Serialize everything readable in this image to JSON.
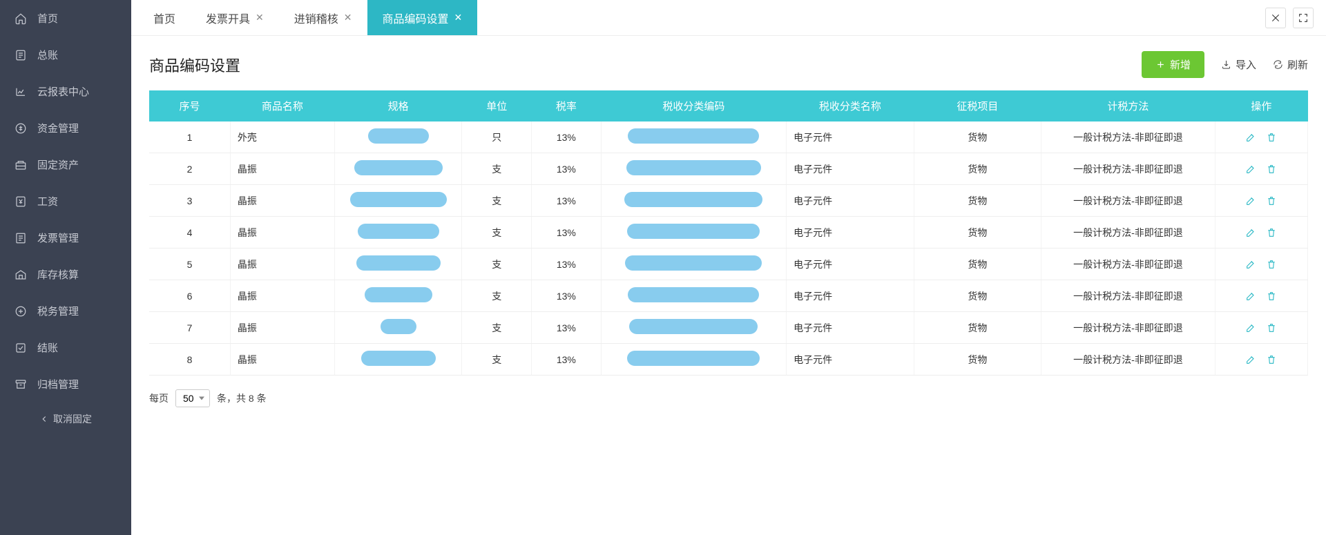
{
  "sidebar": {
    "items": [
      {
        "icon": "home",
        "label": "首页"
      },
      {
        "icon": "ledger",
        "label": "总账"
      },
      {
        "icon": "report",
        "label": "云报表中心"
      },
      {
        "icon": "fund",
        "label": "资金管理"
      },
      {
        "icon": "asset",
        "label": "固定资产"
      },
      {
        "icon": "salary",
        "label": "工资"
      },
      {
        "icon": "invoice",
        "label": "发票管理"
      },
      {
        "icon": "stock",
        "label": "库存核算"
      },
      {
        "icon": "tax",
        "label": "税务管理"
      },
      {
        "icon": "close-acct",
        "label": "结账"
      },
      {
        "icon": "archive",
        "label": "归档管理"
      }
    ],
    "pin_label": "取消固定"
  },
  "tabs": [
    {
      "label": "首页",
      "closable": false,
      "active": false
    },
    {
      "label": "发票开具",
      "closable": true,
      "active": false
    },
    {
      "label": "进销稽核",
      "closable": true,
      "active": false
    },
    {
      "label": "商品编码设置",
      "closable": true,
      "active": true
    }
  ],
  "page": {
    "title": "商品编码设置",
    "add_label": "新增",
    "import_label": "导入",
    "refresh_label": "刷新"
  },
  "table": {
    "columns": [
      "序号",
      "商品名称",
      "规格",
      "单位",
      "税率",
      "税收分类编码",
      "税收分类名称",
      "征税项目",
      "计税方法",
      "操作"
    ],
    "rows": [
      {
        "idx": "1",
        "name": "外壳",
        "spec_w": 88,
        "unit": "只",
        "rate": "13%",
        "code_w": 190,
        "cat": "电子元件",
        "tax_item": "货物",
        "method": "一般计税方法-非即征即退"
      },
      {
        "idx": "2",
        "name": "晶振",
        "spec_w": 128,
        "unit": "支",
        "rate": "13%",
        "code_w": 195,
        "cat": "电子元件",
        "tax_item": "货物",
        "method": "一般计税方法-非即征即退"
      },
      {
        "idx": "3",
        "name": "晶振",
        "spec_w": 140,
        "unit": "支",
        "rate": "13%",
        "code_w": 200,
        "cat": "电子元件",
        "tax_item": "货物",
        "method": "一般计税方法-非即征即退"
      },
      {
        "idx": "4",
        "name": "晶振",
        "spec_w": 118,
        "unit": "支",
        "rate": "13%",
        "code_w": 192,
        "cat": "电子元件",
        "tax_item": "货物",
        "method": "一般计税方法-非即征即退"
      },
      {
        "idx": "5",
        "name": "晶振",
        "spec_w": 122,
        "unit": "支",
        "rate": "13%",
        "code_w": 198,
        "cat": "电子元件",
        "tax_item": "货物",
        "method": "一般计税方法-非即征即退"
      },
      {
        "idx": "6",
        "name": "晶振",
        "spec_w": 98,
        "unit": "支",
        "rate": "13%",
        "code_w": 190,
        "cat": "电子元件",
        "tax_item": "货物",
        "method": "一般计税方法-非即征即退"
      },
      {
        "idx": "7",
        "name": "晶振",
        "spec_w": 52,
        "unit": "支",
        "rate": "13%",
        "code_w": 186,
        "cat": "电子元件",
        "tax_item": "货物",
        "method": "一般计税方法-非即征即退"
      },
      {
        "idx": "8",
        "name": "晶振",
        "spec_w": 108,
        "unit": "支",
        "rate": "13%",
        "code_w": 192,
        "cat": "电子元件",
        "tax_item": "货物",
        "method": "一般计税方法-非即征即退"
      }
    ]
  },
  "pager": {
    "per_page_label_prefix": "每页",
    "per_page_value": "50",
    "summary": "条，共 8 条"
  },
  "colors": {
    "sidebar_bg": "#3b4252",
    "accent_teal": "#3ecad4",
    "tab_active": "#2db7c5",
    "primary_green": "#6cc733",
    "blur": "#88ccee",
    "op_icon": "#26b7c4"
  }
}
